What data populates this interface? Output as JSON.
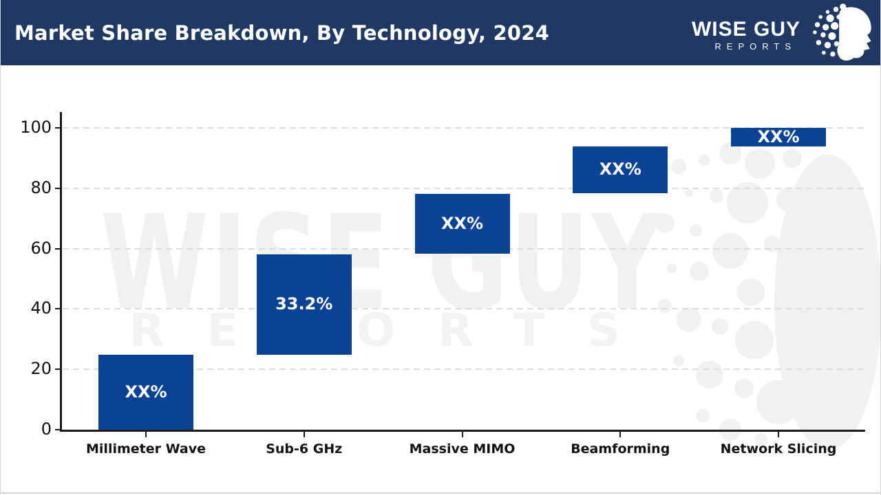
{
  "header": {
    "title": "Market Share Breakdown, By Technology, 2024",
    "logo": {
      "line1": "WISE GUY",
      "line2": "REPORTS"
    }
  },
  "watermark": {
    "line1": "WISE GUY",
    "line2": "REPORTS"
  },
  "colors": {
    "header_bg": "#203864",
    "bar": "#0a4296",
    "axis": "#1a1a1a",
    "grid": "#dcdcdc",
    "bar_label": "#ffffff"
  },
  "chart_data": {
    "type": "bar",
    "subtype": "waterfall",
    "title": "Market Share Breakdown, By Technology, 2024",
    "categories": [
      "Millimeter Wave",
      "Sub-6 GHz",
      "Massive MIMO",
      "Beamforming",
      "Network Slicing"
    ],
    "segments": [
      {
        "category": "Millimeter Wave",
        "start": 0,
        "end": 24.8,
        "label": "XX%"
      },
      {
        "category": "Sub-6 GHz",
        "start": 24.8,
        "end": 58.0,
        "label": "33.2%"
      },
      {
        "category": "Massive MIMO",
        "start": 58.2,
        "end": 78.2,
        "label": "XX%"
      },
      {
        "category": "Beamforming",
        "start": 78.4,
        "end": 93.8,
        "label": "XX%"
      },
      {
        "category": "Network Slicing",
        "start": 93.8,
        "end": 100.1,
        "label": "XX%"
      }
    ],
    "y_ticks": [
      0,
      20,
      40,
      60,
      80,
      100
    ],
    "ylim": [
      0,
      105
    ],
    "xlabel": "",
    "ylabel": "",
    "grid": "horizontal-dashed",
    "legend": "none"
  }
}
